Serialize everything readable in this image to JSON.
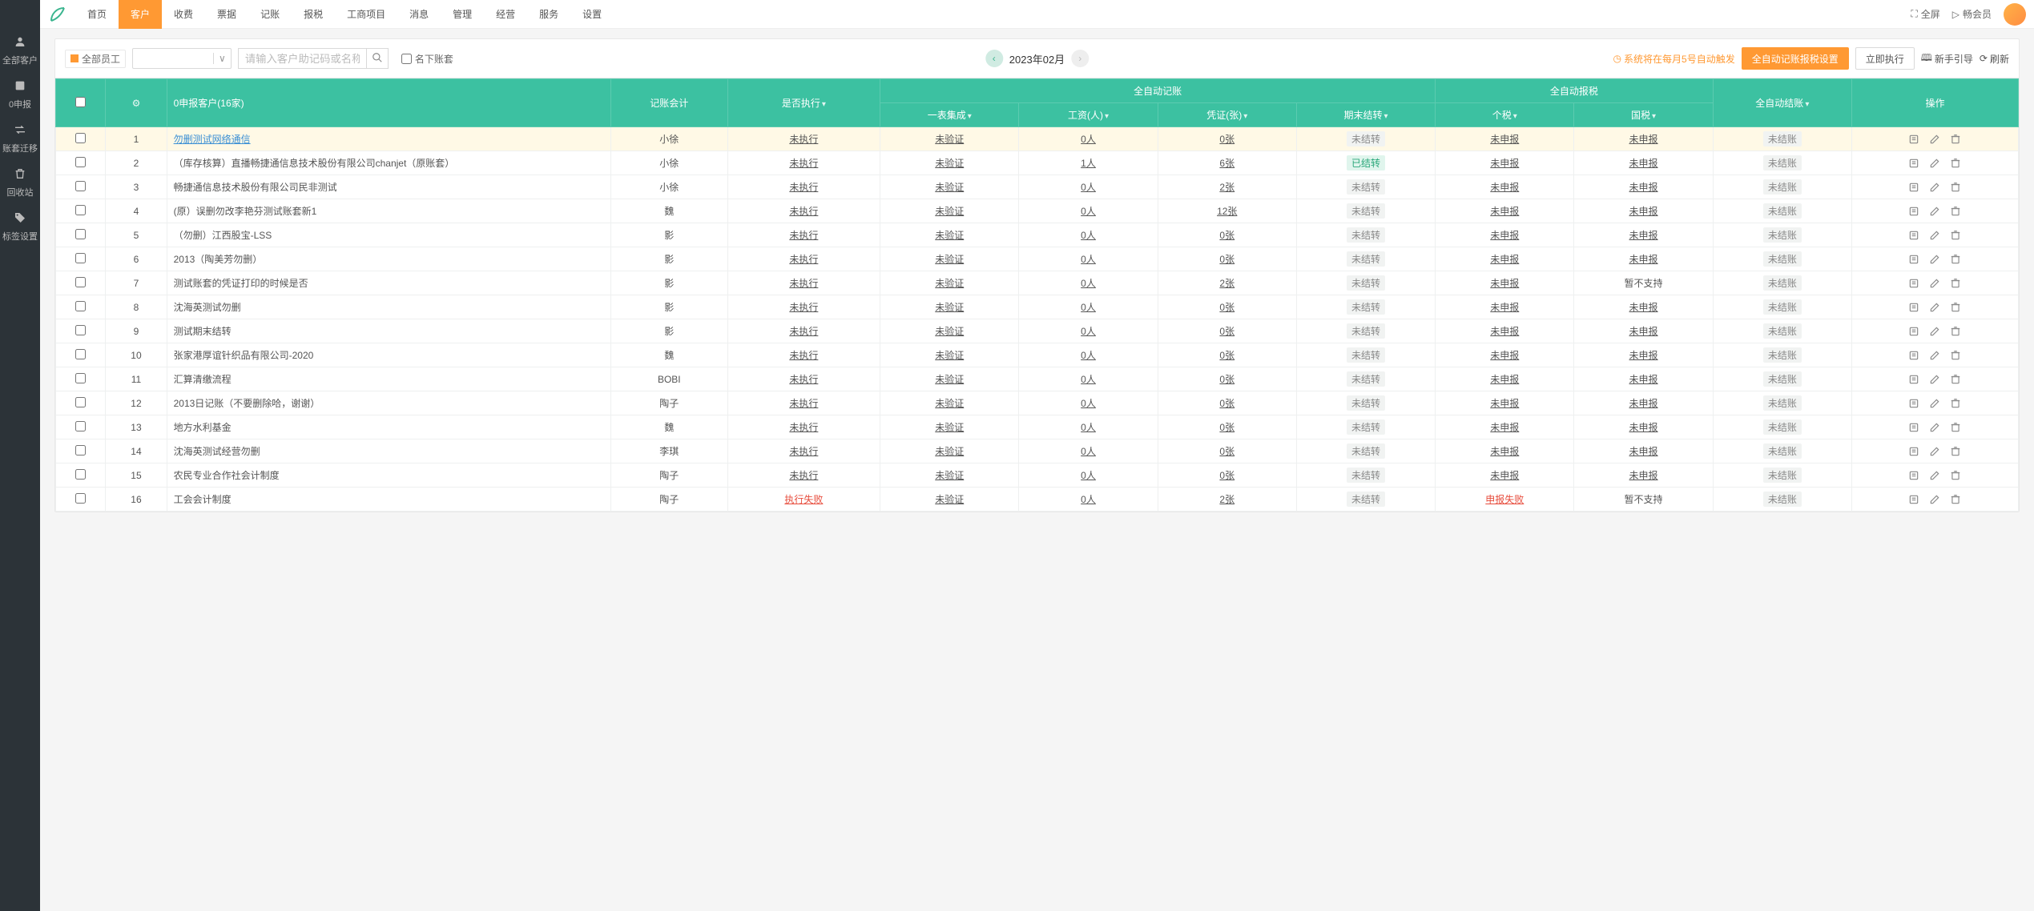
{
  "colors": {
    "accent": "#3cc1a1",
    "orange": "#ff9933",
    "red": "#e74c3c",
    "link": "#3b8fd4"
  },
  "topnav": {
    "items": [
      "首页",
      "客户",
      "收费",
      "票据",
      "记账",
      "报税",
      "工商项目",
      "消息",
      "管理",
      "经营",
      "服务",
      "设置"
    ],
    "active_index": 1,
    "right": {
      "fullscreen": "全屏",
      "member": "畅会员"
    }
  },
  "sidebar": {
    "items": [
      {
        "icon": "users",
        "label": "全部客户"
      },
      {
        "icon": "zero",
        "label": "0申报"
      },
      {
        "icon": "transfer",
        "label": "账套迁移"
      },
      {
        "icon": "trash",
        "label": "回收站"
      },
      {
        "icon": "tag",
        "label": "标签设置"
      }
    ]
  },
  "toolbar": {
    "staff_select": "全部员工",
    "search_placeholder": "请输入客户助记码或名称",
    "under_name_cb": "名下账套",
    "period": "2023年02月",
    "warning": "系统将在每月5号自动触发",
    "auto_setting_btn": "全自动记账报税设置",
    "exec_now_btn": "立即执行",
    "guide": "新手引导",
    "refresh": "刷新"
  },
  "table": {
    "headers": {
      "client": "0申报客户(16家)",
      "accountant": "记账会计",
      "exec": "是否执行",
      "auto_acct_group": "全自动记账",
      "auto_acct_sub": [
        "一表集成",
        "工资(人)",
        "凭证(张)",
        "期末结转"
      ],
      "auto_tax_group": "全自动报税",
      "auto_tax_sub": [
        "个税",
        "国税"
      ],
      "auto_close": "全自动结账",
      "ops": "操作"
    },
    "rows": [
      {
        "idx": 1,
        "name": "勿删测试网络通信",
        "name_link": true,
        "accountant": "小徐",
        "exec": "未执行",
        "exec_red": false,
        "set": "未验证",
        "salary": "0人",
        "voucher": "0张",
        "close": "未结转",
        "close_green": false,
        "ptax": "未申报",
        "ptax_red": false,
        "ntax": "未申报",
        "ntax_unsupported": false,
        "finish": "未结账",
        "highlight": true
      },
      {
        "idx": 2,
        "name": "（库存核算）直播畅捷通信息技术股份有限公司chanjet（原账套）",
        "accountant": "小徐",
        "exec": "未执行",
        "set": "未验证",
        "salary": "1人",
        "voucher": "6张",
        "close": "已结转",
        "close_green": true,
        "ptax": "未申报",
        "ntax": "未申报",
        "finish": "未结账"
      },
      {
        "idx": 3,
        "name": "畅捷通信息技术股份有限公司民非测试",
        "accountant": "小徐",
        "exec": "未执行",
        "set": "未验证",
        "salary": "0人",
        "voucher": "2张",
        "close": "未结转",
        "ptax": "未申报",
        "ntax": "未申报",
        "finish": "未结账"
      },
      {
        "idx": 4,
        "name": "(原）误删勿改李艳芬测试账套新1",
        "accountant": "魏",
        "exec": "未执行",
        "set": "未验证",
        "salary": "0人",
        "voucher": "12张",
        "close": "未结转",
        "ptax": "未申报",
        "ntax": "未申报",
        "finish": "未结账"
      },
      {
        "idx": 5,
        "name": "（勿删）江西股宝-LSS",
        "accountant": "影",
        "exec": "未执行",
        "set": "未验证",
        "salary": "0人",
        "voucher": "0张",
        "close": "未结转",
        "ptax": "未申报",
        "ntax": "未申报",
        "finish": "未结账"
      },
      {
        "idx": 6,
        "name": "2013（陶美芳勿删）",
        "accountant": "影",
        "exec": "未执行",
        "set": "未验证",
        "salary": "0人",
        "voucher": "0张",
        "close": "未结转",
        "ptax": "未申报",
        "ntax": "未申报",
        "finish": "未结账"
      },
      {
        "idx": 7,
        "name": "测试账套的凭证打印的时候是否",
        "accountant": "影",
        "exec": "未执行",
        "set": "未验证",
        "salary": "0人",
        "voucher": "2张",
        "close": "未结转",
        "ptax": "未申报",
        "ntax": "暂不支持",
        "ntax_unsupported": true,
        "finish": "未结账"
      },
      {
        "idx": 8,
        "name": "沈海英测试勿删",
        "accountant": "影",
        "exec": "未执行",
        "set": "未验证",
        "salary": "0人",
        "voucher": "0张",
        "close": "未结转",
        "ptax": "未申报",
        "ntax": "未申报",
        "finish": "未结账"
      },
      {
        "idx": 9,
        "name": "测试期末结转",
        "accountant": "影",
        "exec": "未执行",
        "set": "未验证",
        "salary": "0人",
        "voucher": "0张",
        "close": "未结转",
        "ptax": "未申报",
        "ntax": "未申报",
        "finish": "未结账"
      },
      {
        "idx": 10,
        "name": "张家港厚谊针织品有限公司-2020",
        "accountant": "魏",
        "exec": "未执行",
        "set": "未验证",
        "salary": "0人",
        "voucher": "0张",
        "close": "未结转",
        "ptax": "未申报",
        "ntax": "未申报",
        "finish": "未结账"
      },
      {
        "idx": 11,
        "name": "汇算清缴流程",
        "accountant": "BOBI",
        "exec": "未执行",
        "set": "未验证",
        "salary": "0人",
        "voucher": "0张",
        "close": "未结转",
        "ptax": "未申报",
        "ntax": "未申报",
        "finish": "未结账"
      },
      {
        "idx": 12,
        "name": "2013日记账（不要删除哈，谢谢）",
        "accountant": "陶子",
        "exec": "未执行",
        "set": "未验证",
        "salary": "0人",
        "voucher": "0张",
        "close": "未结转",
        "ptax": "未申报",
        "ntax": "未申报",
        "finish": "未结账"
      },
      {
        "idx": 13,
        "name": "地方水利基金",
        "accountant": "魏",
        "exec": "未执行",
        "set": "未验证",
        "salary": "0人",
        "voucher": "0张",
        "close": "未结转",
        "ptax": "未申报",
        "ntax": "未申报",
        "finish": "未结账"
      },
      {
        "idx": 14,
        "name": "沈海英测试经营勿删",
        "accountant": "李琪",
        "exec": "未执行",
        "set": "未验证",
        "salary": "0人",
        "voucher": "0张",
        "close": "未结转",
        "ptax": "未申报",
        "ntax": "未申报",
        "finish": "未结账"
      },
      {
        "idx": 15,
        "name": "农民专业合作社会计制度",
        "accountant": "陶子",
        "exec": "未执行",
        "set": "未验证",
        "salary": "0人",
        "voucher": "0张",
        "close": "未结转",
        "ptax": "未申报",
        "ntax": "未申报",
        "finish": "未结账"
      },
      {
        "idx": 16,
        "name": "工会会计制度",
        "accountant": "陶子",
        "exec": "执行失败",
        "exec_red": true,
        "set": "未验证",
        "salary": "0人",
        "voucher": "2张",
        "close": "未结转",
        "ptax": "申报失败",
        "ptax_red": true,
        "ntax": "暂不支持",
        "ntax_unsupported": true,
        "finish": "未结账"
      }
    ]
  }
}
